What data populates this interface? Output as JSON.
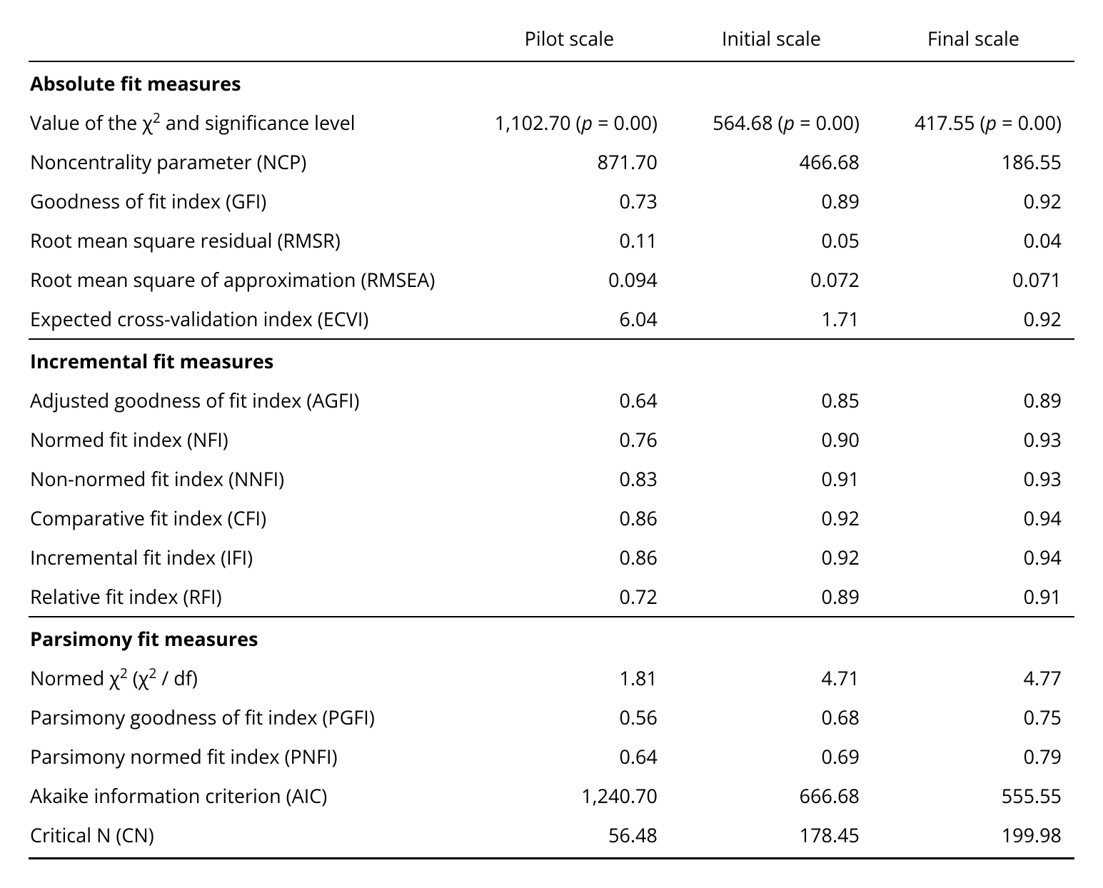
{
  "table": {
    "type": "table",
    "background_color": "#ffffff",
    "text_color": "#000000",
    "rule_color": "#000000",
    "font_family": "Myriad Pro / Helvetica-like sans-serif",
    "base_fontsize_pt": 20,
    "columns": [
      {
        "key": "label",
        "header": "",
        "align": "left"
      },
      {
        "key": "pilot",
        "header": "Pilot scale",
        "align": "right"
      },
      {
        "key": "initial",
        "header": "Initial scale",
        "align": "right"
      },
      {
        "key": "final",
        "header": "Final scale",
        "align": "right"
      }
    ],
    "sections": [
      {
        "title": "Absolute fit measures",
        "rows": [
          {
            "label_html": "Value of the χ<sup>2</sup> and significance level",
            "label_plain": "Value of the χ² and significance level",
            "pilot_html": "1,102.70 (<span class=\"ital\">p</span> = 0.00)",
            "pilot_plain": "1,102.70 (p = 0.00)",
            "initial_html": "564.68 (<span class=\"ital\">p</span> = 0.00)",
            "initial_plain": "564.68 (p = 0.00)",
            "final_html": "417.55 (<span class=\"ital\">p</span> = 0.00)",
            "final_plain": "417.55 (p = 0.00)"
          },
          {
            "label_plain": "Noncentrality parameter (NCP)",
            "pilot_plain": "871.70",
            "initial_plain": "466.68",
            "final_plain": "186.55"
          },
          {
            "label_plain": "Goodness of fit index (GFI)",
            "pilot_plain": "0.73",
            "initial_plain": "0.89",
            "final_plain": "0.92"
          },
          {
            "label_plain": "Root mean square residual (RMSR)",
            "pilot_plain": "0.11",
            "initial_plain": "0.05",
            "final_plain": "0.04"
          },
          {
            "label_plain": "Root mean square of approximation (RMSEA)",
            "pilot_plain": "0.094",
            "initial_plain": "0.072",
            "final_plain": "0.071"
          },
          {
            "label_plain": "Expected cross-validation index (ECVI)",
            "pilot_plain": "6.04",
            "initial_plain": "1.71",
            "final_plain": "0.92"
          }
        ]
      },
      {
        "title": "Incremental fit measures",
        "rows": [
          {
            "label_plain": "Adjusted goodness of fit index (AGFI)",
            "pilot_plain": "0.64",
            "initial_plain": "0.85",
            "final_plain": "0.89"
          },
          {
            "label_plain": "Normed fit index (NFI)",
            "pilot_plain": "0.76",
            "initial_plain": "0.90",
            "final_plain": "0.93"
          },
          {
            "label_plain": "Non-normed fit index (NNFI)",
            "pilot_plain": "0.83",
            "initial_plain": "0.91",
            "final_plain": "0.93"
          },
          {
            "label_plain": "Comparative fit index (CFI)",
            "pilot_plain": "0.86",
            "initial_plain": "0.92",
            "final_plain": "0.94"
          },
          {
            "label_plain": "Incremental fit index (IFI)",
            "pilot_plain": "0.86",
            "initial_plain": "0.92",
            "final_plain": "0.94"
          },
          {
            "label_plain": "Relative fit index (RFI)",
            "pilot_plain": "0.72",
            "initial_plain": "0.89",
            "final_plain": "0.91"
          }
        ]
      },
      {
        "title": "Parsimony fit measures",
        "rows": [
          {
            "label_html": "Normed χ<sup>2</sup> (χ<sup>2</sup> / df)",
            "label_plain": "Normed χ² (χ² / df)",
            "pilot_plain": "1.81",
            "initial_plain": "4.71",
            "final_plain": "4.77"
          },
          {
            "label_plain": "Parsimony goodness of fit index (PGFI)",
            "pilot_plain": "0.56",
            "initial_plain": "0.68",
            "final_plain": "0.75"
          },
          {
            "label_plain": "Parsimony normed fit index (PNFI)",
            "pilot_plain": "0.64",
            "initial_plain": "0.69",
            "final_plain": "0.79"
          },
          {
            "label_plain": "Akaike information criterion (AIC)",
            "pilot_plain": "1,240.70",
            "initial_plain": "666.68",
            "final_plain": "555.55"
          },
          {
            "label_plain": "Critical N (CN)",
            "pilot_plain": "56.48",
            "initial_plain": "178.45",
            "final_plain": "199.98"
          }
        ]
      }
    ]
  }
}
